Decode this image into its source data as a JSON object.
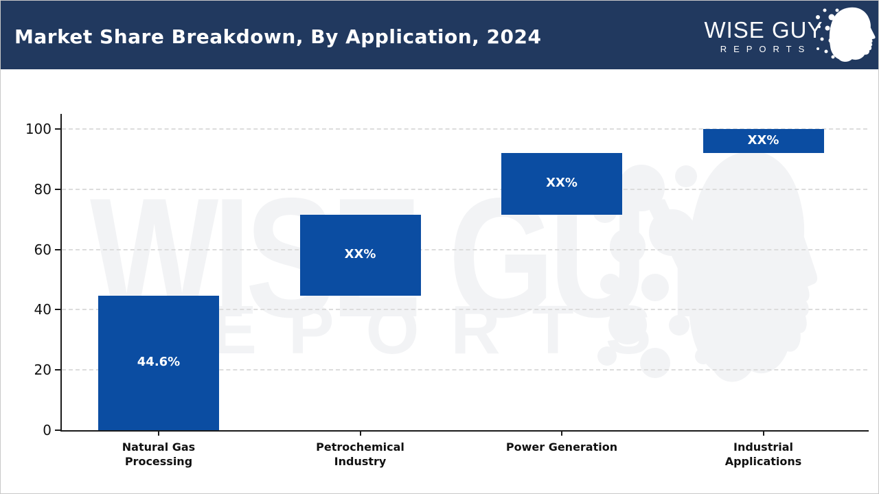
{
  "header": {
    "logo_line1": "WISE GUY",
    "logo_line2": "REPORTS"
  },
  "watermark": {
    "line1": "WISE GUY",
    "line2": "REPORTS"
  },
  "chart_data": {
    "type": "bar",
    "subtype": "waterfall",
    "title": "Market Share Breakdown, By Application, 2024",
    "categories": [
      [
        "Natural Gas",
        "Processing"
      ],
      [
        "Petrochemical",
        "Industry"
      ],
      [
        "Power Generation"
      ],
      [
        "Industrial",
        "Applications"
      ]
    ],
    "segments": [
      {
        "category": "Natural Gas Processing",
        "start": 0,
        "end": 44.6,
        "label": "44.6%"
      },
      {
        "category": "Petrochemical Industry",
        "start": 44.6,
        "end": 71.6,
        "label": "XX%"
      },
      {
        "category": "Power Generation",
        "start": 71.6,
        "end": 92,
        "label": "XX%"
      },
      {
        "category": "Industrial Applications",
        "start": 92,
        "end": 100,
        "label": "XX%"
      }
    ],
    "yticks": [
      0,
      20,
      40,
      60,
      80,
      100
    ],
    "ylim": [
      0,
      105
    ],
    "xlabel": "",
    "ylabel": "",
    "grid": {
      "axis": "y",
      "style": "dashed"
    },
    "legend": "none",
    "colors": {
      "bar": "#0b4da2",
      "bar_label": "#ffffff",
      "header_bg": "#21395f",
      "gridline": "#dcdcdc",
      "axis": "#1a1a1a",
      "watermark": "#f2f3f5"
    }
  }
}
